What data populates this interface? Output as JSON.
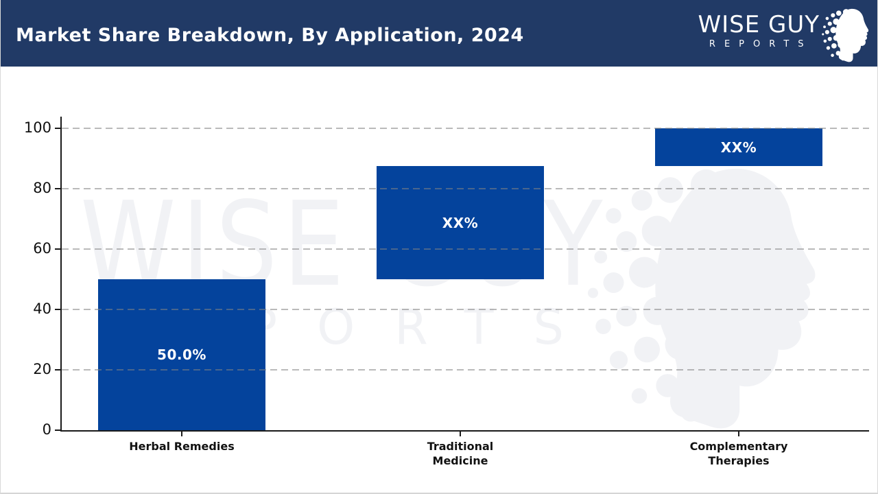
{
  "header": {
    "title": "Market Share Breakdown, By Application, 2024",
    "logo": {
      "line1": "WISE GUY",
      "line2": "REPORTS"
    }
  },
  "watermark": {
    "line1": "WISE GUY",
    "line2": "REPORTS"
  },
  "colors": {
    "header_bg": "#213a66",
    "bar_blue": "#04439c",
    "axis": "#1a1a1a",
    "gridline_dash": "#c9c9c9",
    "watermark": "#f1f2f5",
    "bar_label_text": "#ffffff",
    "category_text": "#111111"
  },
  "chart_data": {
    "type": "bar",
    "subtype": "waterfall",
    "title": "Market Share Breakdown, By Application, 2024",
    "categories": [
      "Herbal Remedies",
      "Traditional Medicine",
      "Complementary Therapies"
    ],
    "segments": [
      {
        "category": "Herbal Remedies",
        "category_lines": [
          "Herbal Remedies"
        ],
        "start": 0,
        "end": 50,
        "label": "50.0%"
      },
      {
        "category": "Traditional Medicine",
        "category_lines": [
          "Traditional",
          "Medicine"
        ],
        "start": 50,
        "end": 87.5,
        "label": "XX%"
      },
      {
        "category": "Complementary Therapies",
        "category_lines": [
          "Complementary",
          "Therapies"
        ],
        "start": 87.5,
        "end": 100,
        "label": "XX%"
      }
    ],
    "y_ticks": [
      0,
      20,
      40,
      60,
      80,
      100
    ],
    "ylim": [
      0,
      104
    ],
    "xlabel": "",
    "ylabel": "",
    "legend": "none",
    "grid": "horizontal-dashed",
    "bar_color": "#04439c"
  }
}
